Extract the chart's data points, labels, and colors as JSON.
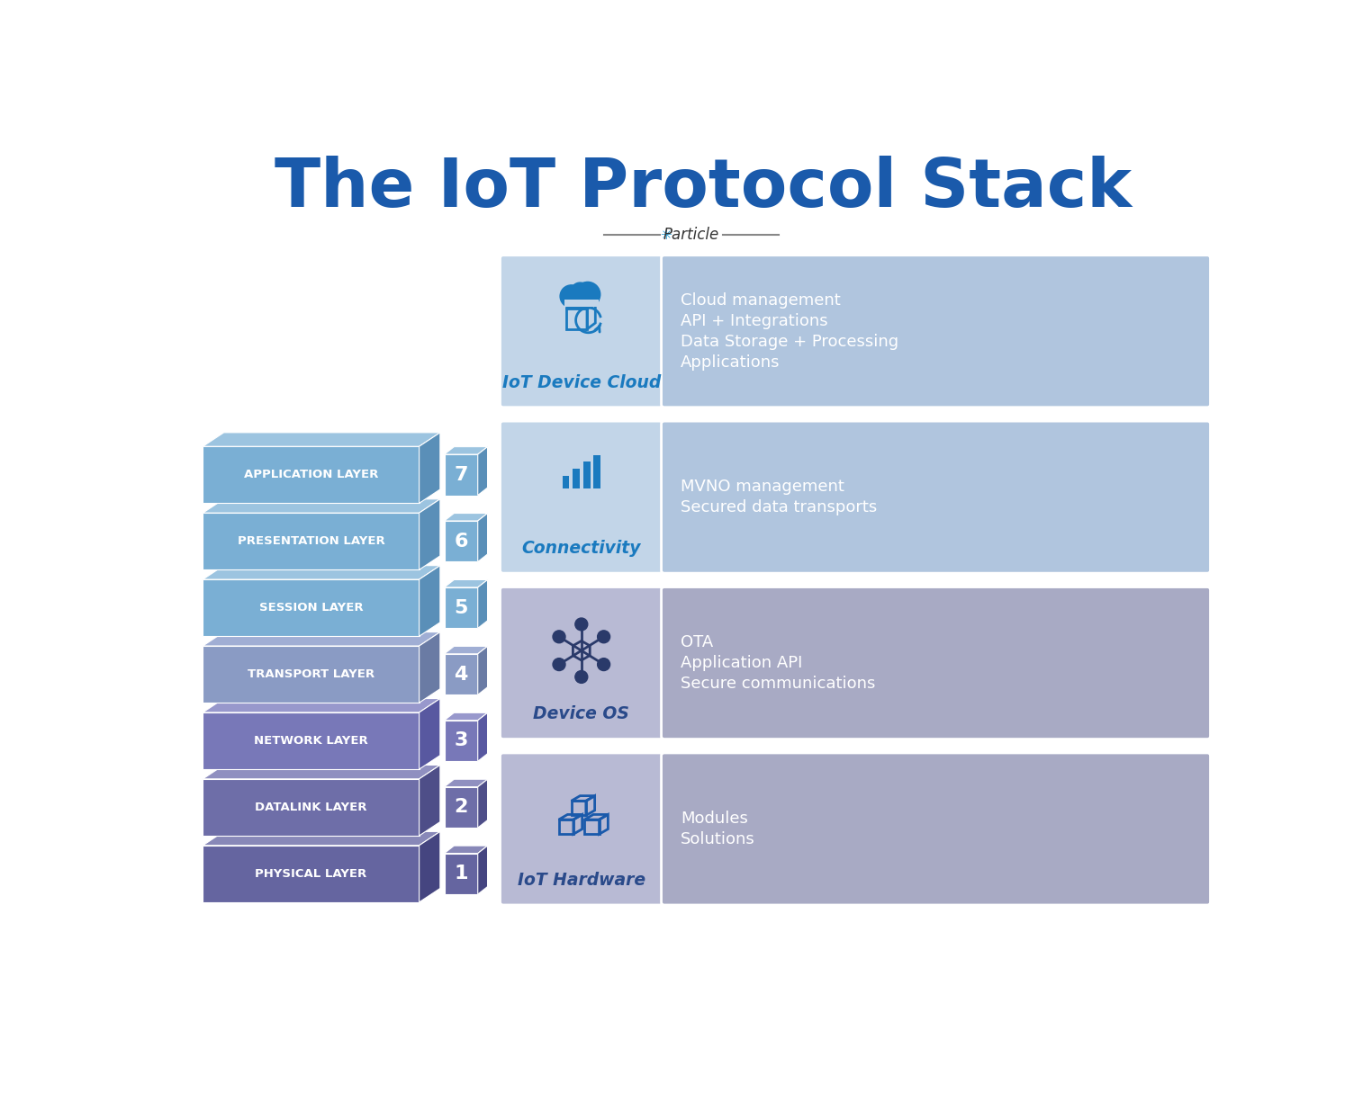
{
  "title": "The IoT Protocol Stack",
  "title_color": "#1a5aab",
  "subtitle": "Particle",
  "bg_color": "#ffffff",
  "layers": [
    {
      "name": "APPLICATION LAYER",
      "num": "7",
      "color_face": "#7aafd4",
      "color_top": "#9cc4e0",
      "color_side": "#5a8fb8"
    },
    {
      "name": "PRESENTATION LAYER",
      "num": "6",
      "color_face": "#7aafd4",
      "color_top": "#9cc4e0",
      "color_side": "#5a8fb8"
    },
    {
      "name": "SESSION LAYER",
      "num": "5",
      "color_face": "#7aafd4",
      "color_top": "#9cc4e0",
      "color_side": "#5a8fb8"
    },
    {
      "name": "TRANSPORT LAYER",
      "num": "4",
      "color_face": "#8a9bc4",
      "color_top": "#a0aed4",
      "color_side": "#6a7ba4"
    },
    {
      "name": "NETWORK LAYER",
      "num": "3",
      "color_face": "#7878b8",
      "color_top": "#9898cc",
      "color_side": "#5858a0"
    },
    {
      "name": "DATALINK LAYER",
      "num": "2",
      "color_face": "#6e6ea8",
      "color_top": "#9090c0",
      "color_side": "#4e4e88"
    },
    {
      "name": "PHYSICAL LAYER",
      "num": "1",
      "color_face": "#6565a0",
      "color_top": "#8888b8",
      "color_side": "#454580"
    }
  ],
  "right_panels": [
    {
      "title": "IoT Device Cloud",
      "title_color": "#1a7abf",
      "bg_left": "#c2d5e8",
      "bg_right": "#b0c5de",
      "details": [
        "Cloud management",
        "API + Integrations",
        "Data Storage + Processing",
        "Applications"
      ],
      "detail_color": "#ffffff"
    },
    {
      "title": "Connectivity",
      "title_color": "#1a7abf",
      "bg_left": "#c2d5e8",
      "bg_right": "#b0c5de",
      "details": [
        "MVNO management",
        "Secured data transports"
      ],
      "detail_color": "#ffffff"
    },
    {
      "title": "Device OS",
      "title_color": "#2a4a8a",
      "bg_left": "#b8bad4",
      "bg_right": "#a8aac4",
      "details": [
        "OTA",
        "Application API",
        "Secure communications"
      ],
      "detail_color": "#ffffff"
    },
    {
      "title": "IoT Hardware",
      "title_color": "#2a4a8a",
      "bg_left": "#b8bad4",
      "bg_right": "#a8aac4",
      "details": [
        "Modules",
        "Solutions"
      ],
      "detail_color": "#ffffff"
    }
  ]
}
